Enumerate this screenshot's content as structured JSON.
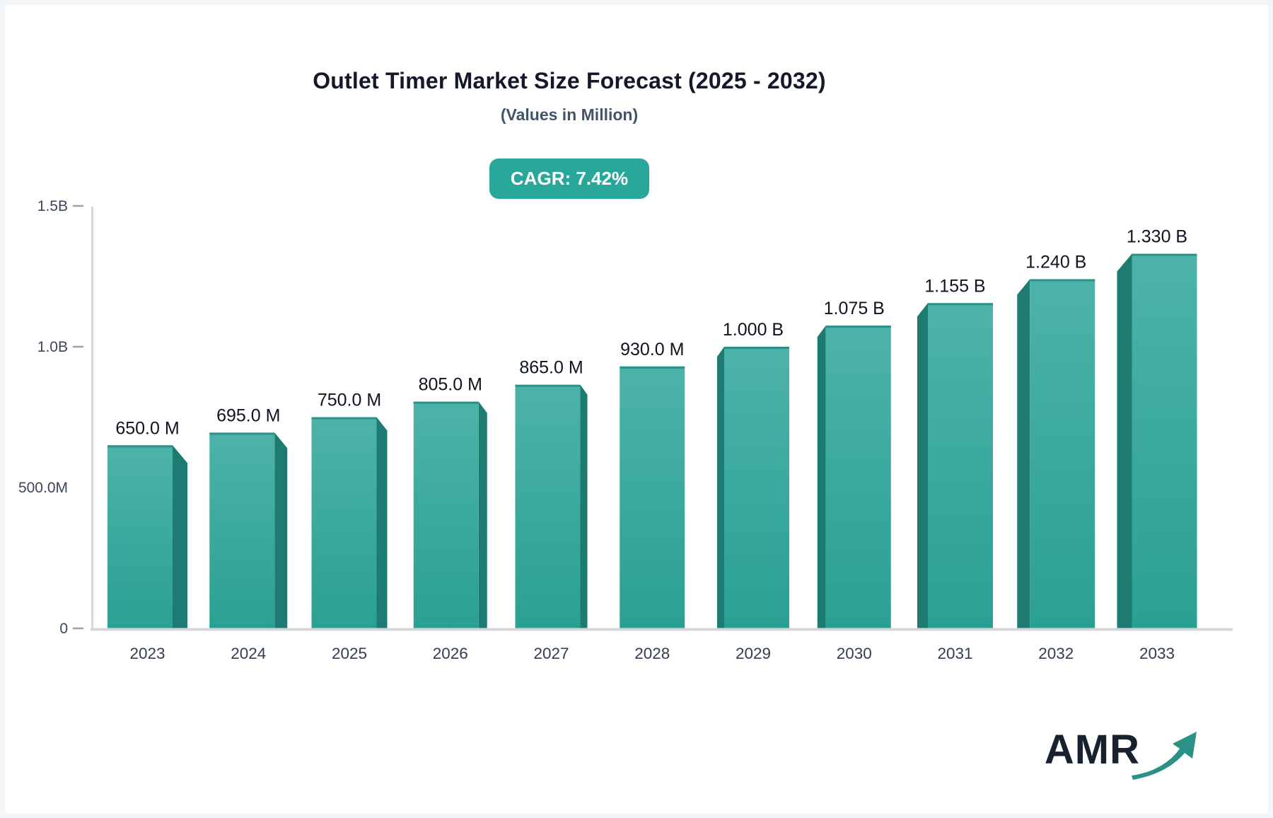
{
  "page": {
    "outer_background": "#f3f6f8",
    "card_background": "#ffffff"
  },
  "header": {
    "title": "Outlet Timer Market Size Forecast (2025 - 2032)",
    "subtitle": "(Values in Million)"
  },
  "badge": {
    "label": "CAGR: 7.42%",
    "background": "#2aa79b",
    "text_color": "#ffffff"
  },
  "chart_data": {
    "type": "bar",
    "title": "Outlet Timer Market Size Forecast (2025 - 2032)",
    "subtitle": "(Values in Million)",
    "categories": [
      "2023",
      "2024",
      "2025",
      "2026",
      "2027",
      "2028",
      "2029",
      "2030",
      "2031",
      "2032",
      "2033"
    ],
    "values_millions": [
      650,
      695,
      750,
      805,
      865,
      930,
      1000,
      1075,
      1155,
      1240,
      1330
    ],
    "bar_labels": [
      "650.0 M",
      "695.0 M",
      "750.0 M",
      "805.0 M",
      "865.0 M",
      "930.0 M",
      "1.000 B",
      "1.075 B",
      "1.155 B",
      "1.240 B",
      "1.330 B"
    ],
    "xlabel": "",
    "ylabel": "",
    "ylim_millions": [
      0,
      1500
    ],
    "y_ticks": [
      {
        "label": "1.5B",
        "value": 1500,
        "dash": true
      },
      {
        "label": "1.0B",
        "value": 1000,
        "dash": true
      },
      {
        "label": "500.0M",
        "value": 500,
        "dash": false
      },
      {
        "label": "0",
        "value": 0,
        "dash": true
      }
    ],
    "grid": false,
    "legend": false,
    "colors": {
      "bar_face_top": "#4db3a8",
      "bar_face_bottom": "#2aa093",
      "bar_side": "#1d7b71",
      "bar_top_edge": "#2a9389",
      "axis_line": "#d5d8dc",
      "tick_dash": "#9aa3af",
      "y_label": "#3c4759",
      "x_label": "#323d52",
      "value_label": "#0f1420"
    }
  },
  "logo": {
    "text": "AMR",
    "text_color": "#18222e",
    "arrow_color": "#2b9187"
  }
}
